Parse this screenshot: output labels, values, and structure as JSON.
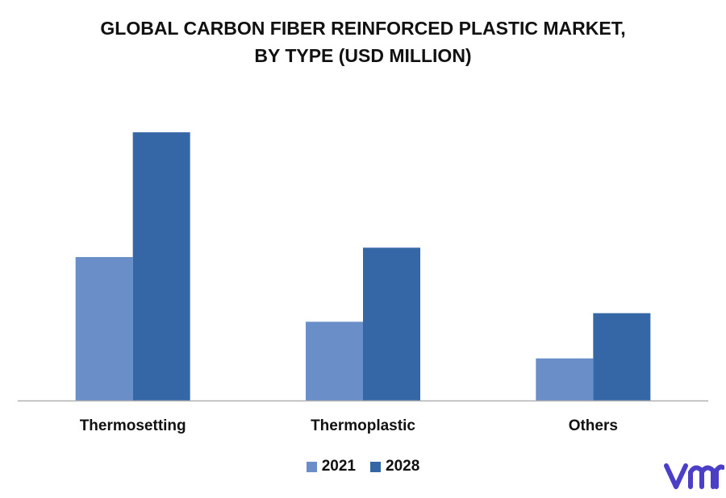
{
  "title_line1": "GLOBAL CARBON FIBER REINFORCED PLASTIC MARKET,",
  "title_line2": "BY TYPE (USD MILLION)",
  "colors": {
    "s2021": "#6a8fc8",
    "s2028": "#3566a6",
    "axis": "#b0b0b0",
    "logo": "#4b3fc7"
  },
  "logo_icon": "vmr-logo-icon",
  "chart_data": {
    "type": "bar",
    "title": "GLOBAL CARBON FIBER REINFORCED PLASTIC MARKET, BY TYPE (USD MILLION)",
    "categories": [
      "Thermosetting",
      "Thermoplastic",
      "Others"
    ],
    "series": [
      {
        "name": "2021",
        "values": [
          184,
          101,
          54
        ]
      },
      {
        "name": "2028",
        "values": [
          344,
          196,
          112
        ]
      }
    ],
    "xlabel": "",
    "ylabel": "",
    "ylim": [
      0,
      400
    ],
    "grid": false,
    "legend": "bottom"
  }
}
